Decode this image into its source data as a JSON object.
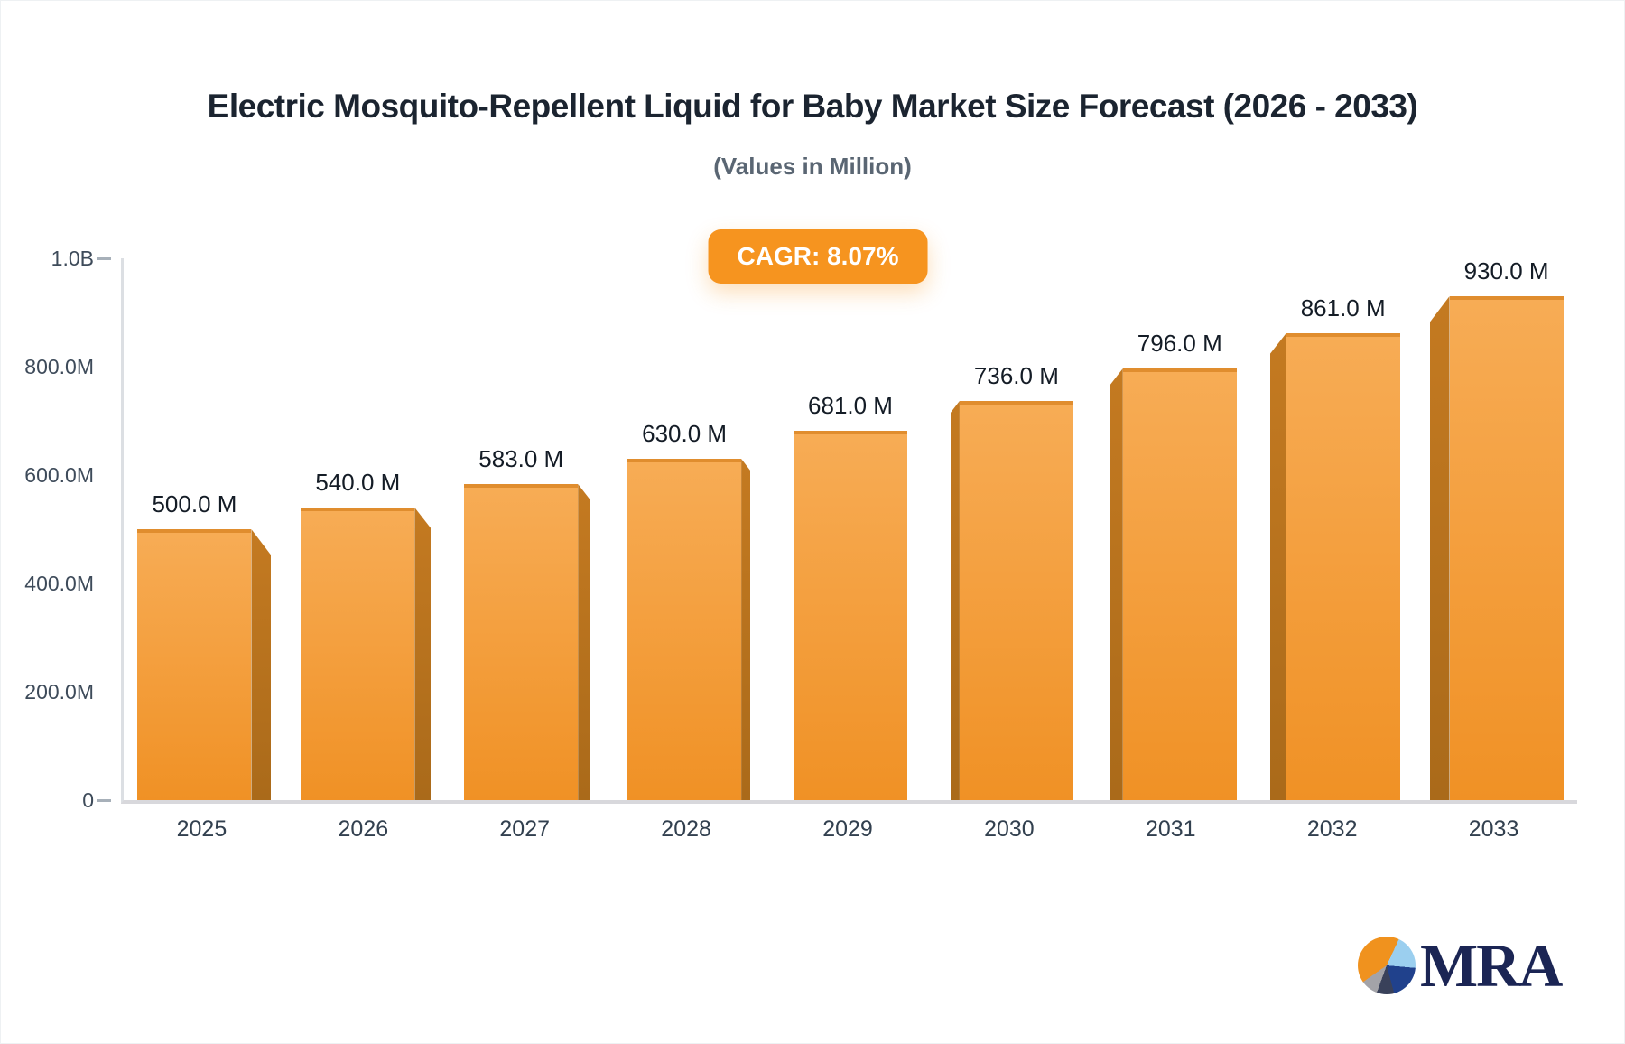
{
  "header": {
    "title": "Electric Mosquito-Repellent Liquid for Baby Market Size Forecast (2026 - 2033)",
    "subtitle": "(Values in Million)"
  },
  "badge": {
    "label": "CAGR: 8.07%",
    "bg_color": "#f6941f",
    "text_color": "#ffffff"
  },
  "chart_data": {
    "type": "bar",
    "title": "Electric Mosquito-Repellent Liquid for Baby Market Size Forecast (2026 - 2033)",
    "subtitle": "(Values in Million)",
    "categories": [
      "2025",
      "2026",
      "2027",
      "2028",
      "2029",
      "2030",
      "2031",
      "2032",
      "2033"
    ],
    "values": [
      500,
      540,
      583,
      630,
      681,
      736,
      796,
      861,
      930
    ],
    "value_labels": [
      "500.0 M",
      "540.0 M",
      "583.0 M",
      "630.0 M",
      "681.0 M",
      "736.0 M",
      "796.0 M",
      "861.0 M",
      "930.0 M"
    ],
    "unit": "Million",
    "xlabel": "",
    "ylabel": "",
    "y_ticks": [
      "0",
      "200.0M",
      "400.0M",
      "600.0M",
      "800.0M",
      "1.0B"
    ],
    "ylim_millions": [
      0,
      1000
    ],
    "grid": false,
    "legend": false,
    "annotation": "CAGR: 8.07%",
    "bar_color_top": "#f7ac55",
    "bar_color_bottom": "#f09125",
    "bar_top_edge_color": "#e08d2e",
    "bar_side_color_top": "#c47a21",
    "bar_side_color_bottom": "#aa6a1a",
    "axis_line_color": "#dcdfe3",
    "baseline_color": "#d8d8dc"
  },
  "logo": {
    "text": "MRA",
    "text_color": "#1b2554",
    "pie_orange": "#f0921e",
    "pie_light_blue": "#9bcfef",
    "pie_navy": "#20418c",
    "pie_dark_slate": "#39415a",
    "pie_gray": "#a3a3a8"
  }
}
